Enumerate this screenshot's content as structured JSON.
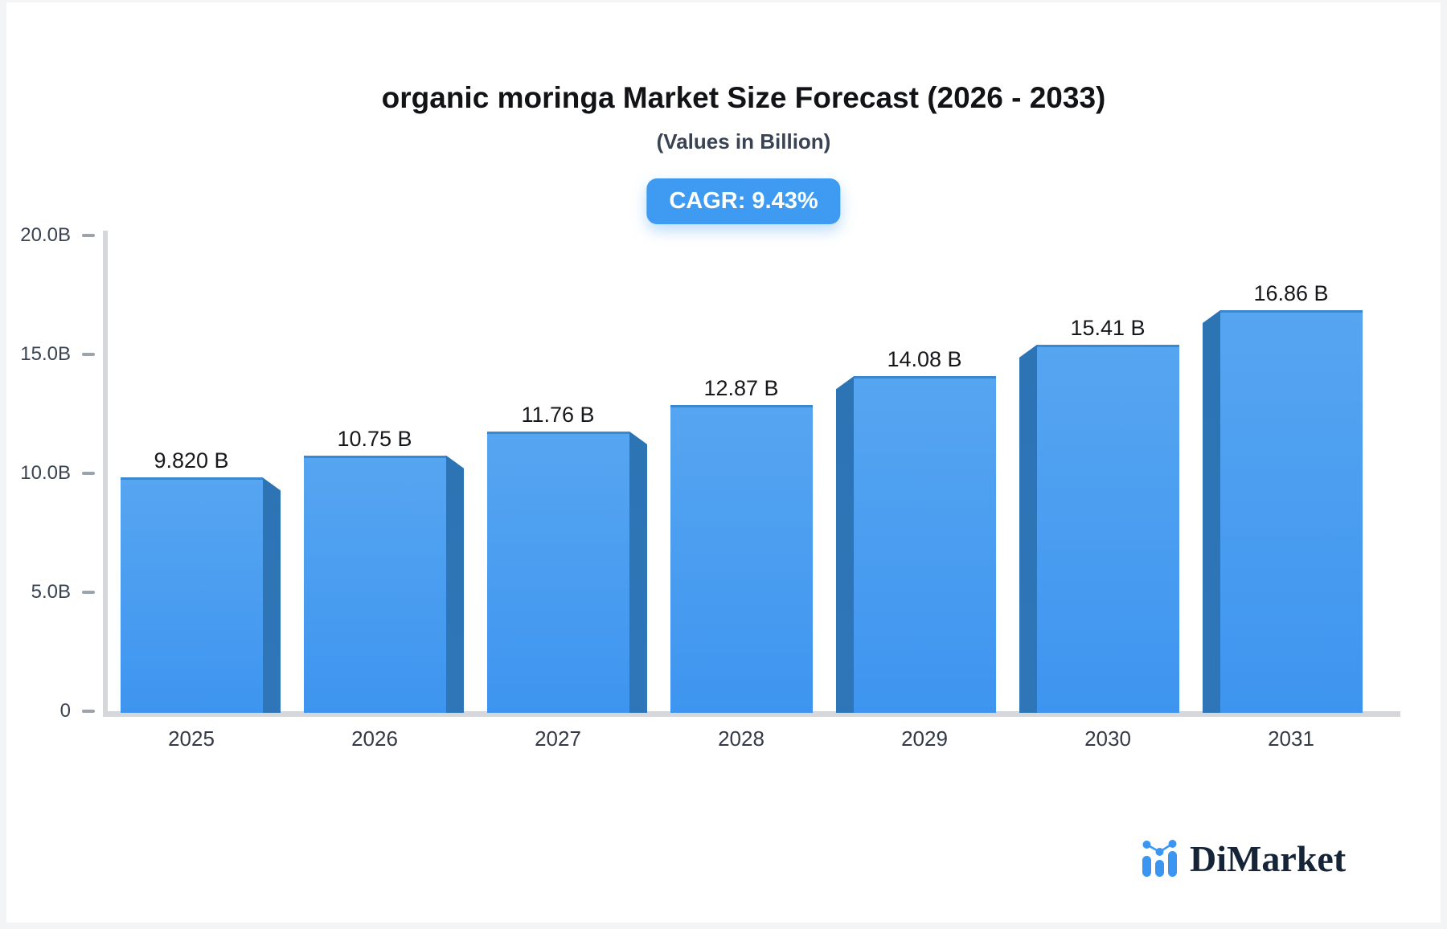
{
  "page": {
    "background": "#f3f4f6",
    "card_background": "#ffffff"
  },
  "header": {
    "title": "organic moringa Market Size Forecast (2026 - 2033)",
    "subtitle": "(Values in Billion)",
    "cagr_label": "CAGR: 9.43%"
  },
  "chart_data": {
    "type": "bar",
    "title": "organic moringa Market Size Forecast (2026 - 2033)",
    "subtitle": "(Values in Billion)",
    "cagr_percent": 9.43,
    "unit": "Billion",
    "categories": [
      "2025",
      "2026",
      "2027",
      "2028",
      "2029",
      "2030",
      "2031"
    ],
    "values": [
      9.82,
      10.75,
      11.76,
      12.87,
      14.08,
      15.41,
      16.86
    ],
    "value_labels": [
      "9.820 B",
      "10.75 B",
      "11.76 B",
      "12.87 B",
      "14.08 B",
      "15.41 B",
      "16.86 B"
    ],
    "ylim": [
      0,
      20
    ],
    "yticks": [
      {
        "value": 20,
        "label": "20.0B"
      },
      {
        "value": 15,
        "label": "15.0B"
      },
      {
        "value": 10,
        "label": "10.0B"
      },
      {
        "value": 5,
        "label": "5.0B"
      },
      {
        "value": 0,
        "label": "0"
      }
    ],
    "grid": false,
    "legend": false,
    "style": "3d-extruded-bars",
    "colors": {
      "bar_top": "#56a5f1",
      "bar_bottom": "#3e95ef",
      "bar_top_edge": "#3a87d2",
      "bar_side": "#2d74b5",
      "axis_line": "#d5d7da",
      "tick": "#9ca3ad",
      "tick_label": "#3a4350",
      "value_label": "#16181c",
      "category_label": "#333a46",
      "badge_bg": "#3f9bf1",
      "badge_text": "#ffffff"
    }
  },
  "branding": {
    "logo_text": "DiMarket",
    "logo_icon": "bar-chart-with-trend-line-icon",
    "logo_text_color": "#162438",
    "logo_icon_color": "#3b96f2"
  }
}
